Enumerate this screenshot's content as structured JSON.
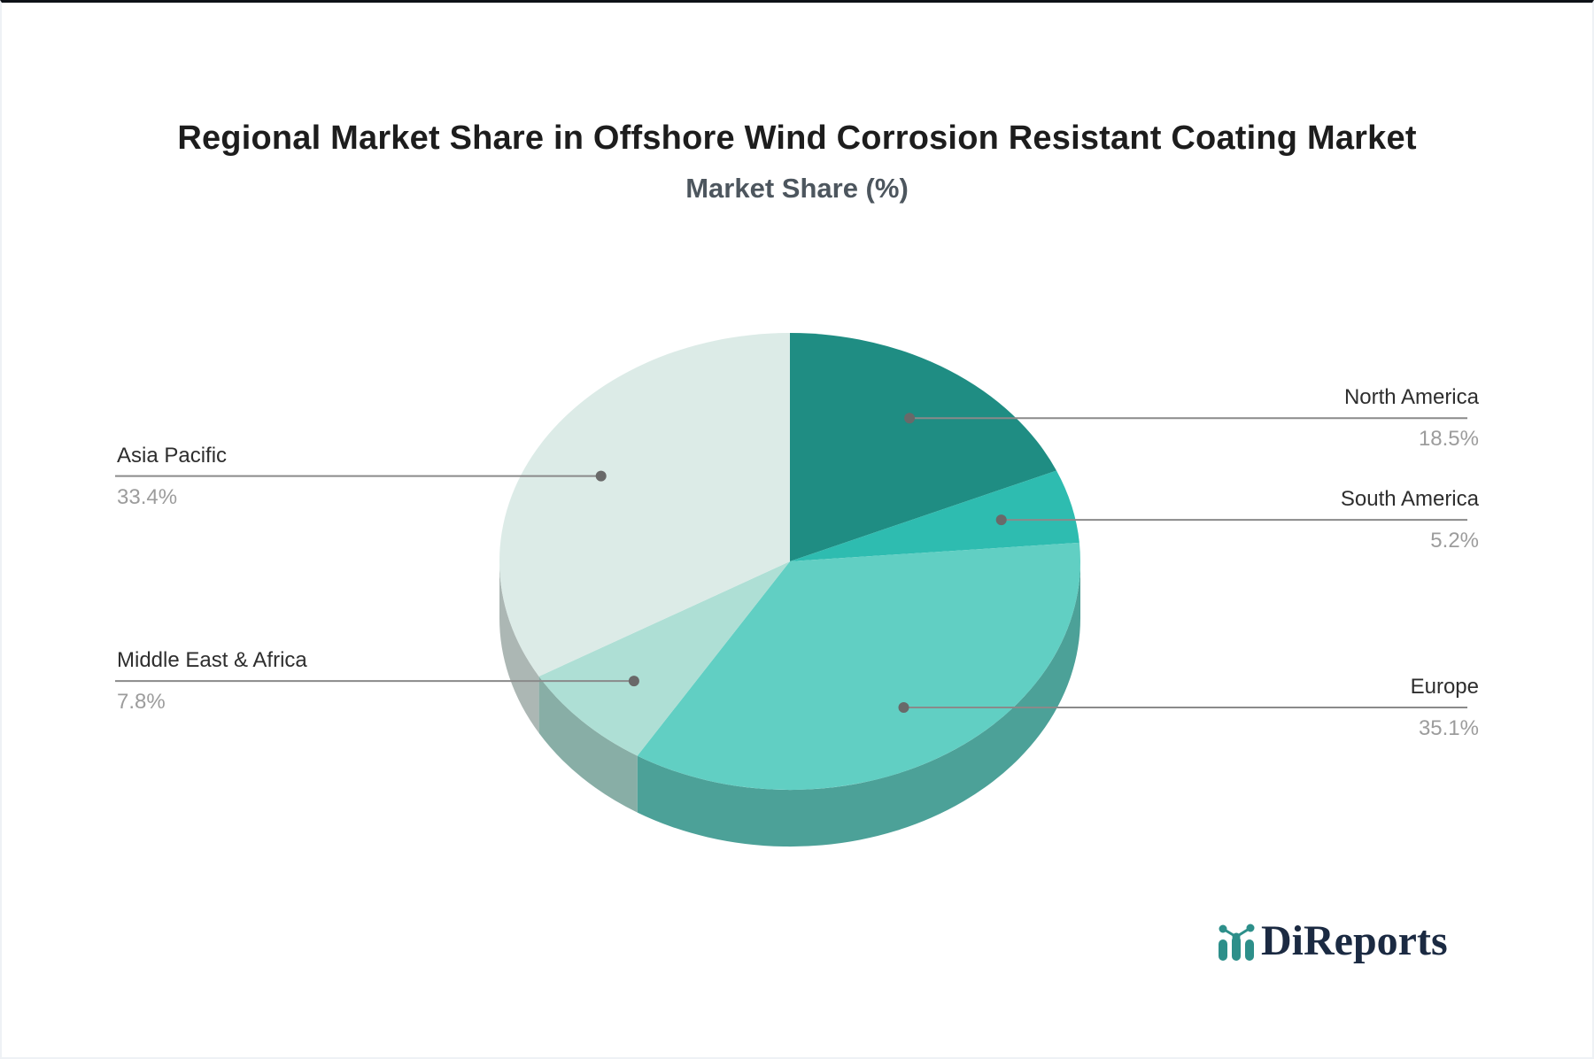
{
  "header": {
    "title": "Regional Market Share in Offshore Wind Corrosion Resistant Coating Market",
    "subtitle": "Market Share (%)"
  },
  "chart_data": {
    "type": "pie",
    "style": "3d-depth",
    "title": "Regional Market Share in Offshore Wind Corrosion Resistant Coating Market",
    "subtitle": "Market Share (%)",
    "unit": "%",
    "start_angle": "top",
    "direction": "clockwise",
    "legend": "none",
    "segments": [
      {
        "label": "North America",
        "value": 18.5,
        "color": "#1f8d83",
        "label_side": "right"
      },
      {
        "label": "South America",
        "value": 5.2,
        "color": "#2ebcb0",
        "label_side": "right"
      },
      {
        "label": "Europe",
        "value": 35.1,
        "color": "#61cfc3",
        "label_side": "right"
      },
      {
        "label": "Middle East & Africa",
        "value": 7.8,
        "color": "#aedfd5",
        "label_side": "left"
      },
      {
        "label": "Asia Pacific",
        "value": 33.4,
        "color": "#dcebe7",
        "label_side": "left"
      }
    ]
  },
  "colors": {
    "title": "#1d1d1d",
    "subtitle": "#4d565e",
    "label_name": "#2e2e2e",
    "label_value": "#9c9c9c",
    "leader_line": "#8a8a8a",
    "leader_dot": "#696969"
  },
  "branding": {
    "logo_text": "DiReports",
    "logo_icon": "mini-bar-chart-icon",
    "logo_text_color": "#1b2a42",
    "logo_icon_color": "#2d8f8a"
  }
}
